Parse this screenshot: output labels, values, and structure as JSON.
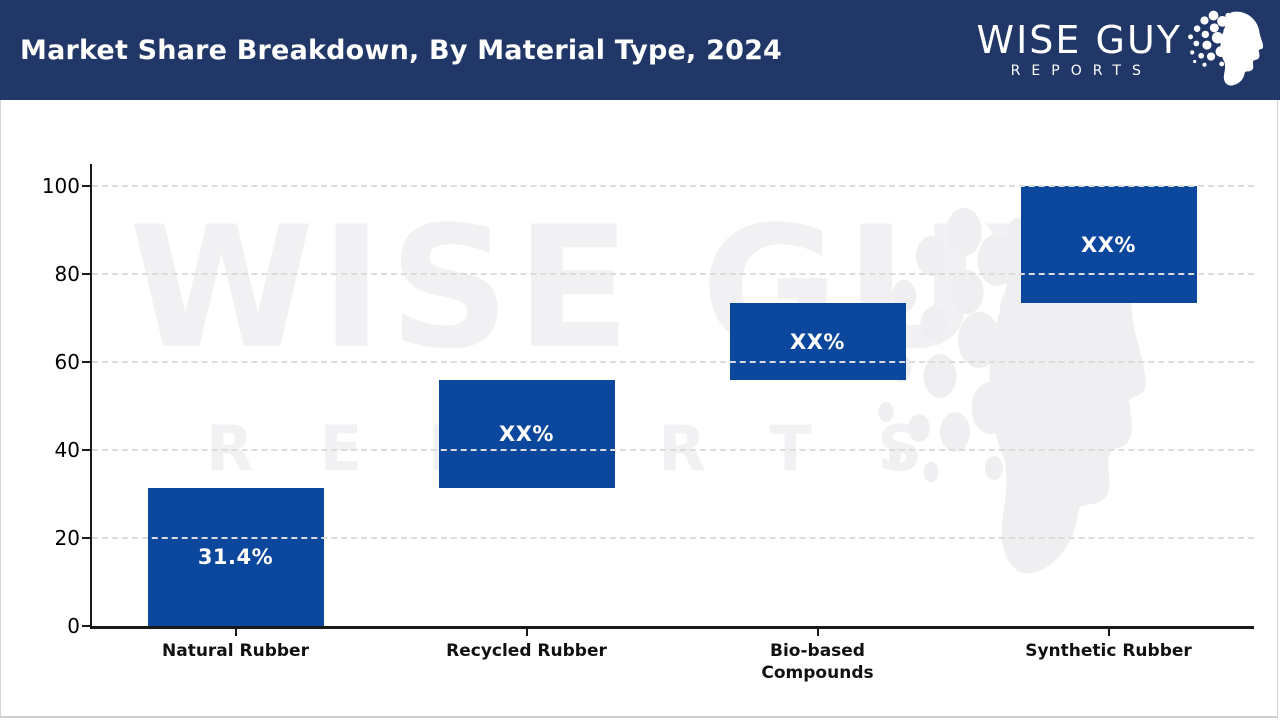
{
  "header": {
    "title": "Market Share Breakdown, By Material Type, 2024",
    "logo": {
      "line1": "WISE GUY",
      "line2": "REPORTS"
    }
  },
  "watermark": {
    "line1": "WISE GUY",
    "line2": "REPORTS"
  },
  "colors": {
    "header_bg": "#213767",
    "bar": "#0b479d",
    "grid": "#dcdcdc",
    "axis": "#1a1a1a",
    "watermark": "#f1f1f4",
    "title_text": "#ffffff",
    "bar_label_text": "#ffffff"
  },
  "chart_data": {
    "type": "bar",
    "subtype": "waterfall",
    "title": "Market Share Breakdown, By Material Type, 2024",
    "categories": [
      "Natural Rubber",
      "Recycled Rubber",
      "Bio-based Compounds",
      "Synthetic Rubber"
    ],
    "segments": [
      {
        "category": "Natural Rubber",
        "start": 0,
        "end": 31.4,
        "label": "31.4%"
      },
      {
        "category": "Recycled Rubber",
        "start": 31.4,
        "end": 55.8,
        "label": "XX%"
      },
      {
        "category": "Bio-based Compounds",
        "start": 55.8,
        "end": 73.4,
        "label": "XX%"
      },
      {
        "category": "Synthetic Rubber",
        "start": 73.4,
        "end": 100,
        "label": "XX%"
      }
    ],
    "xlabel": "",
    "ylabel": "",
    "ylim": [
      0,
      100
    ],
    "yticks": [
      0,
      20,
      40,
      60,
      80,
      100
    ],
    "grid": "horizontal-dashed",
    "legend": "none"
  }
}
